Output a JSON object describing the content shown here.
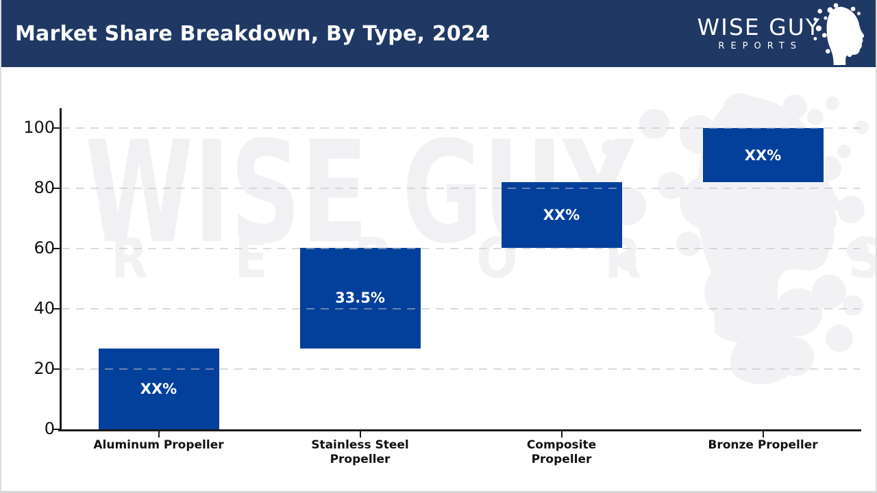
{
  "header": {
    "title": "Market Share Breakdown, By Type, 2024",
    "logo": {
      "line1": "WISE GUY",
      "line2": "REPORTS"
    }
  },
  "watermark": {
    "line1": "WISE GUY",
    "line2": "R E P O R T S"
  },
  "colors": {
    "header_bg": "#1F3864",
    "bar": "#03409B",
    "bar_label": "#ffffff",
    "axis": "#1a1a1a",
    "gridline": "#d9d9d9",
    "watermark": "#f2f2f4"
  },
  "chart_data": {
    "type": "bar",
    "subtype": "floating-waterfall",
    "title": "Market Share Breakdown, By Type, 2024",
    "categories": [
      "Aluminum Propeller",
      "Stainless Steel Propeller",
      "Composite Propeller",
      "Bronze Propeller"
    ],
    "category_lines": [
      [
        "Aluminum Propeller"
      ],
      [
        "Stainless Steel",
        "Propeller"
      ],
      [
        "Composite",
        "Propeller"
      ],
      [
        "Bronze Propeller"
      ]
    ],
    "bars": [
      {
        "label": "XX%",
        "start": 0,
        "end": 26.8
      },
      {
        "label": "33.5%",
        "start": 26.8,
        "end": 60.3
      },
      {
        "label": "XX%",
        "start": 60.3,
        "end": 82.0
      },
      {
        "label": "XX%",
        "start": 82.0,
        "end": 100.0
      }
    ],
    "xlabel": "",
    "ylabel": "",
    "yticks": [
      0,
      20,
      40,
      60,
      80,
      100
    ],
    "ylim": [
      0,
      105
    ],
    "grid": "dashed-horizontal",
    "legend": "none"
  }
}
